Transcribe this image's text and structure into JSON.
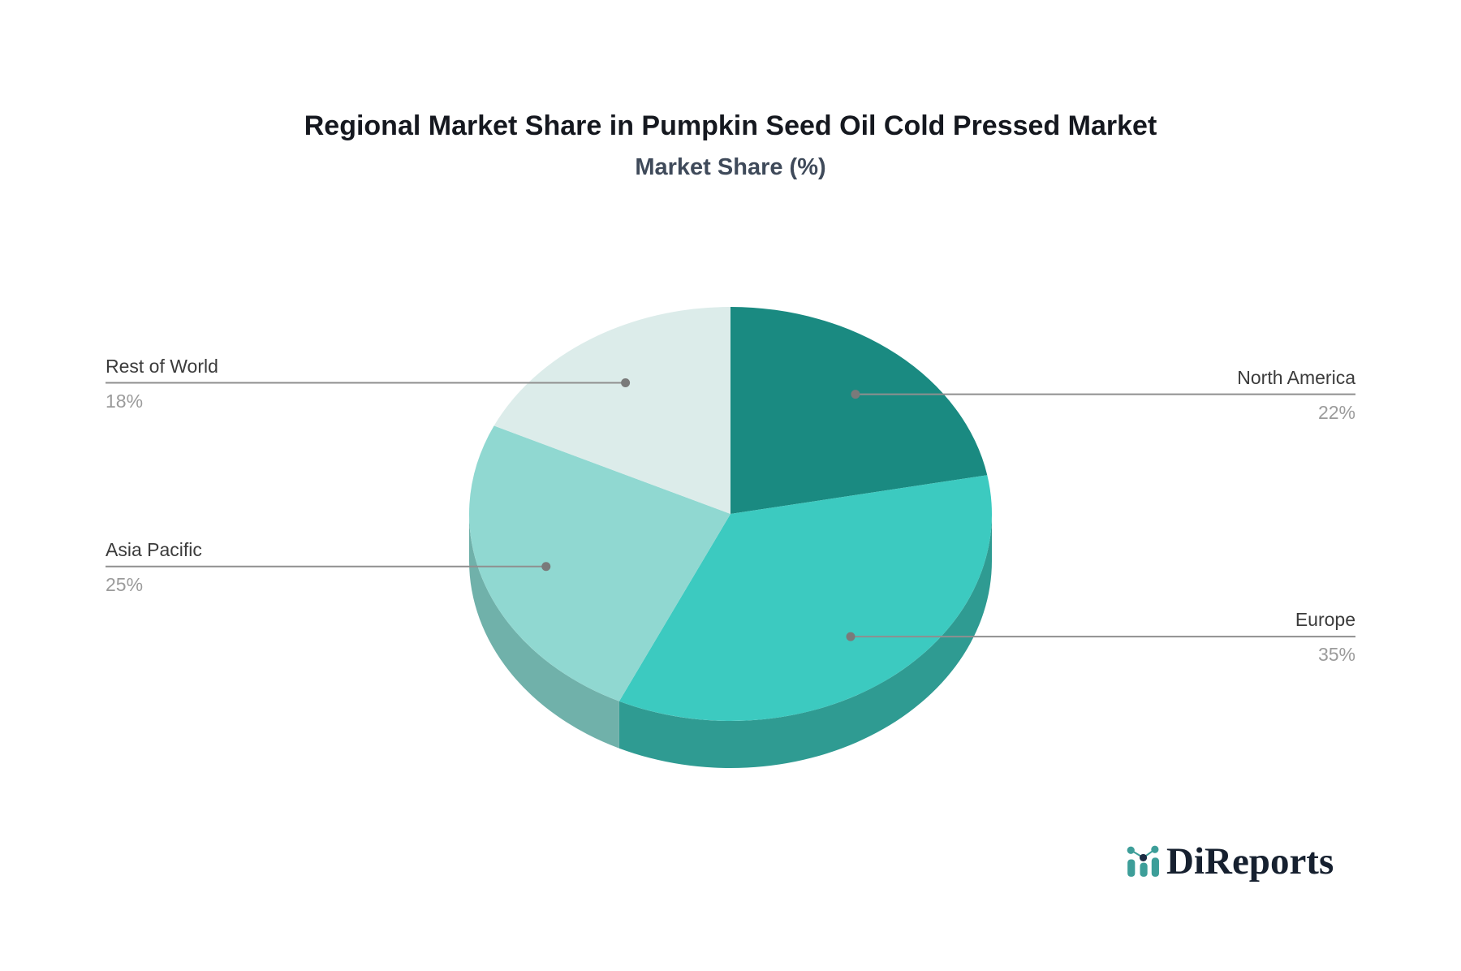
{
  "header": {
    "title": "Regional Market Share in Pumpkin Seed Oil Cold Pressed Market",
    "subtitle": "Market Share (%)"
  },
  "chart_data": {
    "type": "pie",
    "style": "3d",
    "title": "Regional Market Share in Pumpkin Seed Oil Cold Pressed Market",
    "subtitle": "Market Share (%)",
    "unit": "%",
    "start_angle_deg": 0,
    "direction": "clockwise",
    "legend_position": "callout-labels",
    "categories": [
      "North America",
      "Europe",
      "Asia Pacific",
      "Rest of World"
    ],
    "values": [
      22,
      35,
      25,
      18
    ],
    "slices": [
      {
        "label": "North America",
        "value": 22,
        "value_label": "22%",
        "color": "#1a8a81",
        "side_color": "#15766e"
      },
      {
        "label": "Europe",
        "value": 35,
        "value_label": "35%",
        "color": "#3ccac0",
        "side_color": "#2f9b92"
      },
      {
        "label": "Asia Pacific",
        "value": 25,
        "value_label": "25%",
        "color": "#90d8d1",
        "side_color": "#70b1aa"
      },
      {
        "label": "Rest of World",
        "value": 18,
        "value_label": "18%",
        "color": "#dcecea",
        "side_color": "#b3ccc9"
      }
    ]
  },
  "colors": {
    "background": "#ffffff",
    "title_text": "#15181f",
    "subtitle_text": "#3f4a5a",
    "callout_name_text": "#3b3b3b",
    "callout_value_text": "#9b9b9b",
    "leader_line": "#8f8f8f",
    "leader_dot": "#7a7a7a",
    "logo_teal": "#3d9e99",
    "logo_navy": "#1d2c44"
  },
  "logo": {
    "text": "DiReports"
  }
}
